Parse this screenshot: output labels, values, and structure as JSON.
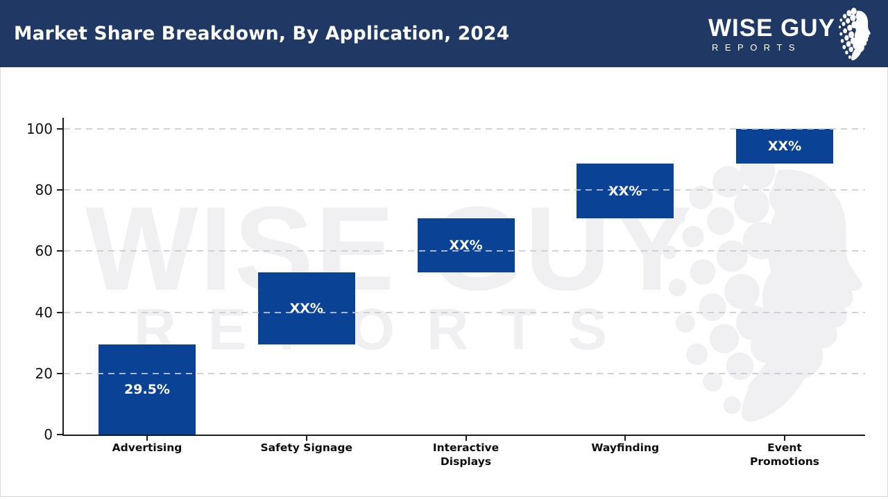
{
  "header": {
    "title": "Market Share Breakdown, By Application, 2024",
    "logo": {
      "line1": "WISE GUY",
      "line2": "REPORTS"
    }
  },
  "watermark": {
    "line1": "WISE GUY",
    "line2": "REPORTS"
  },
  "colors": {
    "header_bg": "#1f3864",
    "bar": "#0a4296",
    "bar_label": "#ffffff",
    "grid": "#c9cbd0",
    "axis": "#1c1c1c",
    "watermark": "#f0f0f2"
  },
  "chart_data": {
    "type": "bar",
    "subtype": "waterfall",
    "title": "Market Share Breakdown, By Application, 2024",
    "xlabel": "",
    "ylabel": "",
    "ylim": [
      0,
      100
    ],
    "yticks": [
      0,
      20,
      40,
      60,
      80,
      100
    ],
    "grid": true,
    "grid_style": "dashed",
    "legend": "none",
    "categories": [
      "Advertising",
      "Safety Signage",
      "Interactive Displays",
      "Wayfinding",
      "Event Promotions"
    ],
    "segments": [
      {
        "category": "Advertising",
        "start": 0,
        "end": 29.5,
        "label": "29.5%"
      },
      {
        "category": "Safety Signage",
        "start": 29.5,
        "end": 53.0,
        "label": "XX%"
      },
      {
        "category": "Interactive Displays",
        "start": 53.0,
        "end": 70.7,
        "label": "XX%"
      },
      {
        "category": "Wayfinding",
        "start": 70.7,
        "end": 88.6,
        "label": "XX%"
      },
      {
        "category": "Event Promotions",
        "start": 88.6,
        "end": 100,
        "label": "XX%"
      }
    ]
  }
}
